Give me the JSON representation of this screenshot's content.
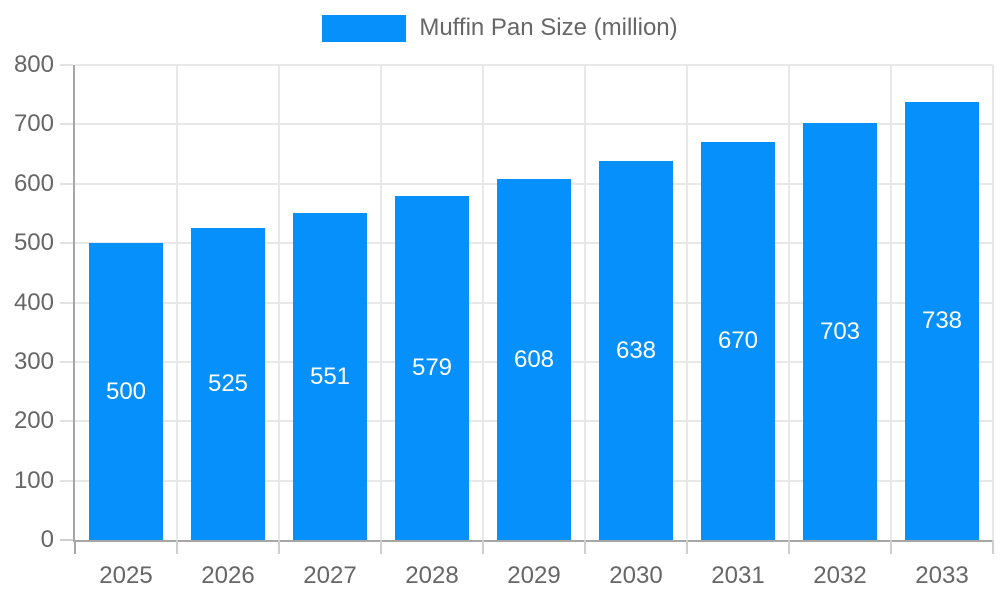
{
  "chart_data": {
    "type": "bar",
    "title": "Muffin Pan Size (million)",
    "legend": {
      "label": "Muffin Pan Size (million)",
      "position": "top"
    },
    "categories": [
      "2025",
      "2026",
      "2027",
      "2028",
      "2029",
      "2030",
      "2031",
      "2032",
      "2033"
    ],
    "series": [
      {
        "name": "Muffin Pan Size (million)",
        "values": [
          500,
          525,
          551,
          579,
          608,
          638,
          670,
          703,
          738
        ]
      }
    ],
    "xlabel": "",
    "ylabel": "",
    "ylim": [
      0,
      800
    ],
    "ytick_step": 100,
    "ytick_labels": [
      "0",
      "100",
      "200",
      "300",
      "400",
      "500",
      "600",
      "700",
      "800"
    ],
    "grid": true,
    "bar_value_labels_shown": true,
    "colors": {
      "bar": "#0590fb",
      "bar_value_text": "#ffffff",
      "axis_text": "#666666",
      "legend_text": "#666666",
      "gridline": "#e8e8e8",
      "axis_line": "#a6a6a6",
      "tick_x": "#cfcfcf",
      "tick_y": "#e2e2e2"
    }
  }
}
